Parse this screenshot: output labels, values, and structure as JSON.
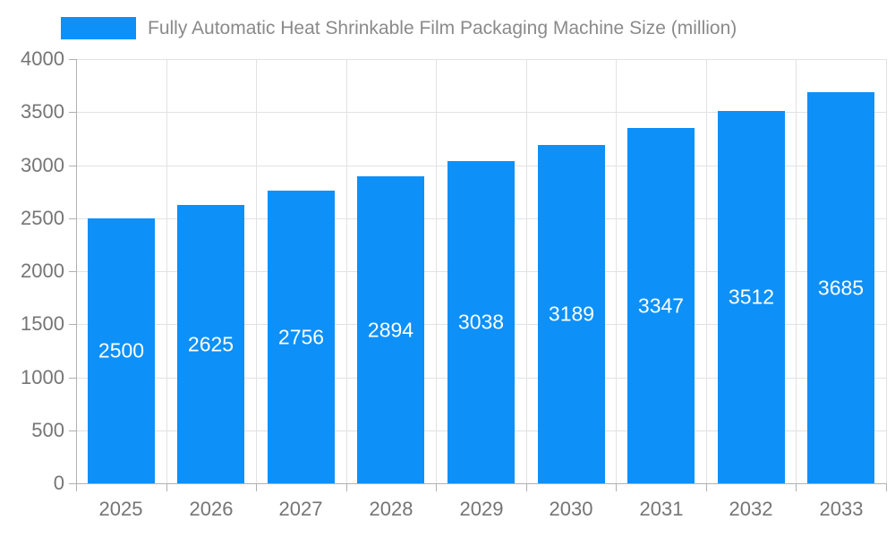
{
  "chart_data": {
    "type": "bar",
    "title": "Fully Automatic Heat Shrinkable Film Packaging Machine Size (million)",
    "legend_position": "top-left",
    "categories": [
      "2025",
      "2026",
      "2027",
      "2028",
      "2029",
      "2030",
      "2031",
      "2032",
      "2033"
    ],
    "values": [
      2500,
      2625,
      2756,
      2894,
      3038,
      3189,
      3347,
      3512,
      3685
    ],
    "xlabel": "",
    "ylabel": "",
    "ylim": [
      0,
      4000
    ],
    "ytick_step": 500,
    "yticks": [
      0,
      500,
      1000,
      1500,
      2000,
      2500,
      3000,
      3500,
      4000
    ],
    "grid": true,
    "bar_label_position": "center",
    "colors": {
      "bar": "#0d90f8",
      "bar_label": "#ffffff",
      "grid": "#e2e2e2",
      "axis": "#b0b0b0",
      "tick_label": "#757575",
      "legend_text": "#8a8a8a"
    }
  }
}
